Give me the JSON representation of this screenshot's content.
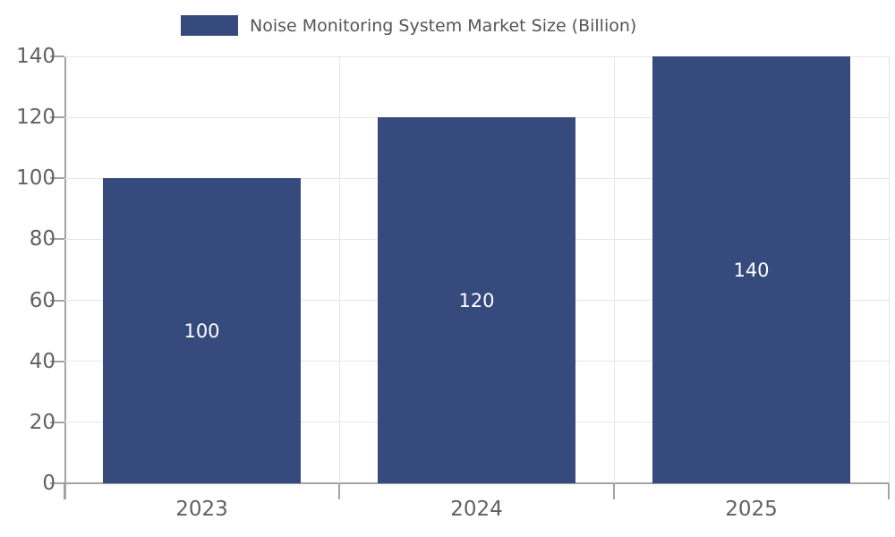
{
  "chart_data": {
    "type": "bar",
    "title": "",
    "categories": [
      "2023",
      "2024",
      "2025"
    ],
    "values": [
      100,
      120,
      140
    ],
    "bar_labels": [
      "100",
      "120",
      "140"
    ],
    "legend": {
      "label": "Noise Monitoring System Market Size (Billion)",
      "position": "top-center"
    },
    "xlabel": "",
    "ylabel": "",
    "ylim": [
      0,
      140
    ],
    "yticks": [
      0,
      20,
      40,
      60,
      80,
      100,
      120,
      140
    ],
    "grid": "on",
    "colors": {
      "bar": "#374a7e",
      "bar_label_text": "#ffffff",
      "grid_line": "#e5e5e5",
      "axis_line": "#a3a3a3",
      "tick_label": "#616161",
      "legend_text": "#555555",
      "background": "#ffffff"
    }
  }
}
